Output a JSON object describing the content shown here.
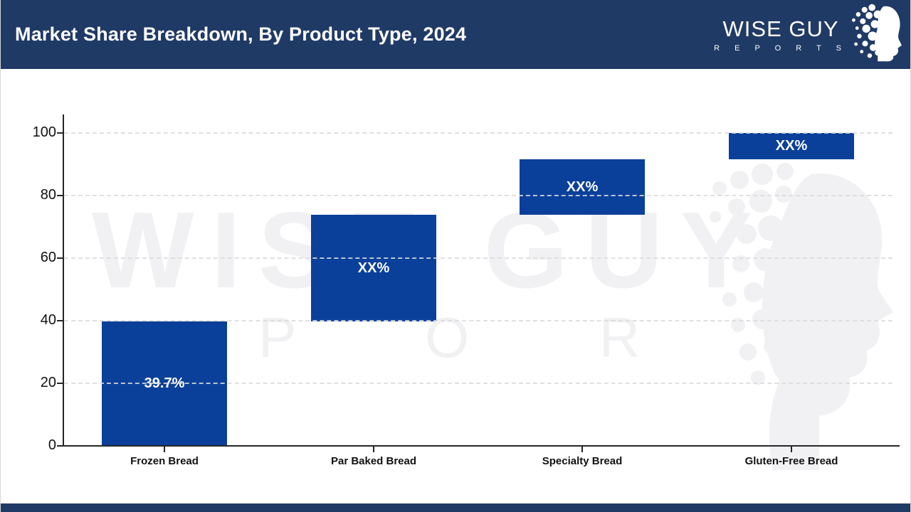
{
  "header": {
    "title": "Market Share Breakdown, By Product Type, 2024",
    "logo": {
      "line1": "WISE GUY",
      "line2": "R E P O R T S"
    }
  },
  "watermark": {
    "line1": "WISE GUY",
    "line2": "P O R T S"
  },
  "chart_data": {
    "type": "bar",
    "subtype": "cumulative-waterfall-stacked",
    "title": "Market Share Breakdown, By Product Type, 2024",
    "categories": [
      "Frozen Bread",
      "Par Baked Bread",
      "Specialty Bread",
      "Gluten-Free Bread"
    ],
    "segments": [
      {
        "category": "Frozen Bread",
        "start": 0,
        "end": 39.7,
        "label": "39.7%"
      },
      {
        "category": "Par Baked Bread",
        "start": 39.7,
        "end": 73.8,
        "label": "XX%"
      },
      {
        "category": "Specialty Bread",
        "start": 73.8,
        "end": 91.6,
        "label": "XX%"
      },
      {
        "category": "Gluten-Free Bread",
        "start": 91.6,
        "end": 100,
        "label": "XX%"
      }
    ],
    "ylim": [
      0,
      100
    ],
    "yticks": [
      0,
      20,
      40,
      60,
      80,
      100
    ],
    "xlabel": "",
    "ylabel": "",
    "legend": "none",
    "grid": "horizontal-dashed",
    "bar_color": "#0a409a",
    "bar_label_color": "#ffffff"
  },
  "colors": {
    "header_bg": "#203a66",
    "footer_bg": "#203a66",
    "bar": "#0a409a",
    "axis": "#262626",
    "gridline": "#dbdbdd",
    "watermark": "#f1f1f3",
    "title_text": "#ffffff"
  }
}
